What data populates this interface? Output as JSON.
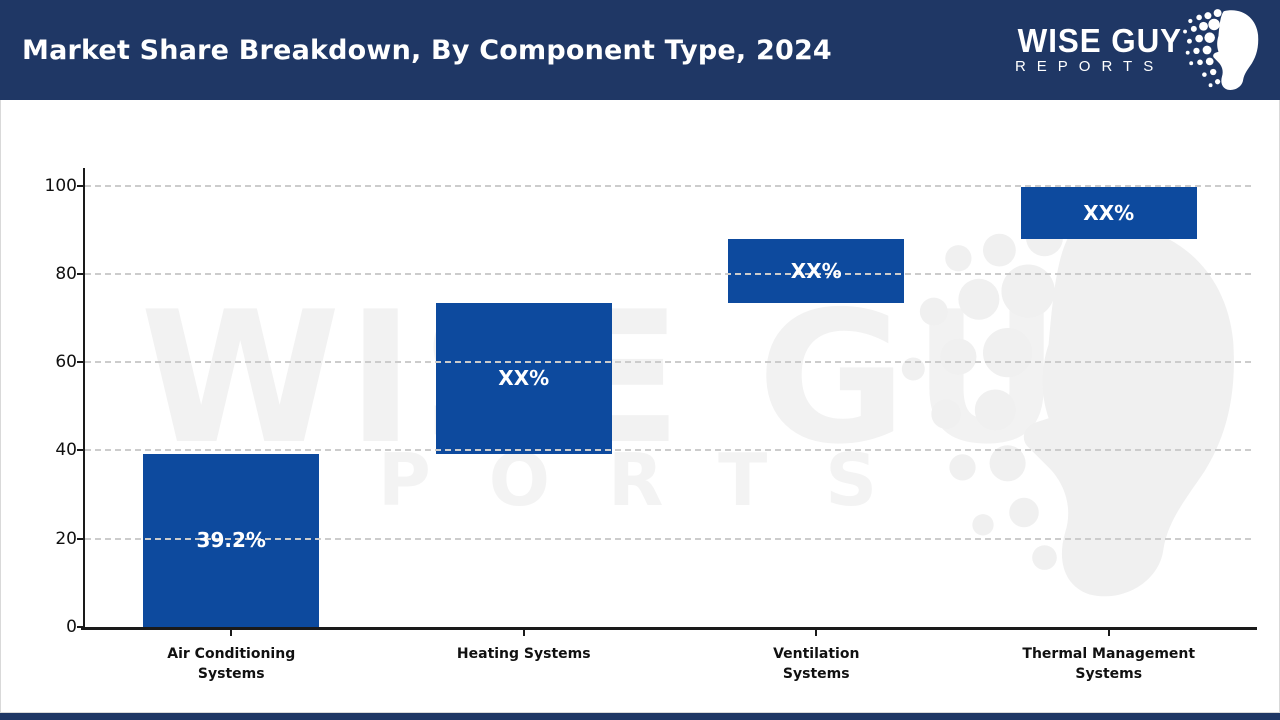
{
  "header": {
    "title": "Market Share Breakdown, By Component Type, 2024",
    "logo": {
      "line1": "WISE GUY",
      "line2": "REPORTS"
    }
  },
  "watermark": {
    "line1": "WISE GUY",
    "line2": "PORTS"
  },
  "chart_data": {
    "type": "bar",
    "subtype": "waterfall",
    "title": "Market Share Breakdown, By Component Type, 2024",
    "categories": [
      "Air Conditioning Systems",
      "Heating Systems",
      "Ventilation Systems",
      "Thermal Management Systems"
    ],
    "category_lines": [
      [
        "Air Conditioning",
        "Systems"
      ],
      [
        "Heating Systems"
      ],
      [
        "Ventilation",
        "Systems"
      ],
      [
        "Thermal Management",
        "Systems"
      ]
    ],
    "segments": [
      {
        "category": "Air Conditioning Systems",
        "start": 0,
        "end": 39.2,
        "label": "39.2%"
      },
      {
        "category": "Heating Systems",
        "start": 39.2,
        "end": 73.5,
        "label": "XX%"
      },
      {
        "category": "Ventilation Systems",
        "start": 73.5,
        "end": 88.0,
        "label": "XX%"
      },
      {
        "category": "Thermal Management Systems",
        "start": 88.0,
        "end": 99.7,
        "label": "XX%"
      }
    ],
    "yticks": [
      0,
      20,
      40,
      60,
      80,
      100
    ],
    "ylim": [
      0,
      104
    ],
    "xlabel": "",
    "ylabel": "",
    "grid": "horizontal-dashed",
    "legend": "none",
    "bar_color": "#0d4a9e",
    "bar_label_color": "#ffffff"
  },
  "colors": {
    "header_bg": "#1f3765",
    "footer_bg": "#1f3765",
    "bar": "#0d4a9e",
    "grid": "#cccccc",
    "axis": "#1a1a1a",
    "watermark": "#f2f2f2"
  }
}
